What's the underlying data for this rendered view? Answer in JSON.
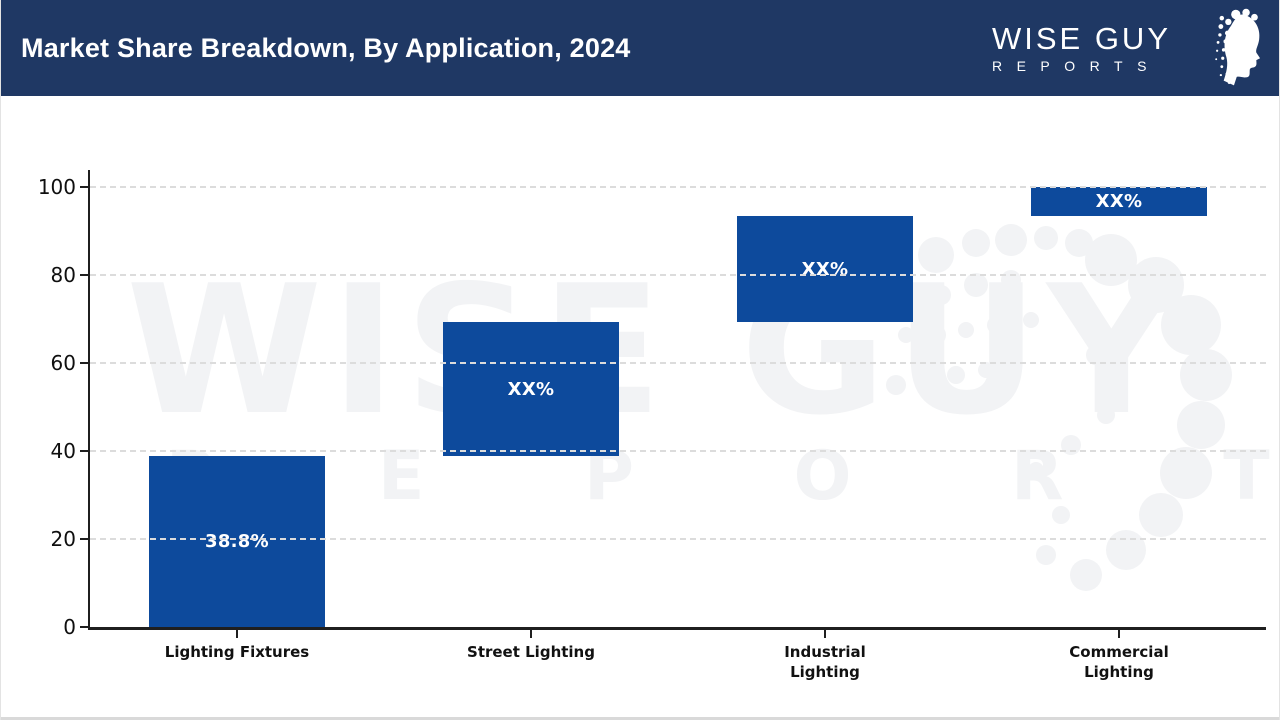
{
  "header": {
    "title": "Market Share Breakdown, By Application, 2024",
    "logo": {
      "line1": "WISE GUY",
      "line2": "REPORTS"
    }
  },
  "watermark": {
    "line1": "WISE GUY",
    "line2": "R E P O R T S"
  },
  "colors": {
    "header_bg": "#1F3864",
    "bar_blue": "#0D4A9C",
    "grid_gray": "#DCDCDC",
    "watermark_gray": "#F2F3F5"
  },
  "chart_data": {
    "type": "bar",
    "subtype": "waterfall",
    "title": "Market Share Breakdown, By Application, 2024",
    "categories": [
      "Lighting Fixtures",
      "Street Lighting",
      "Industrial\nLighting",
      "Commercial\nLighting"
    ],
    "bars": [
      {
        "category": "Lighting Fixtures",
        "start": 0,
        "end": 38.8,
        "label": "38.8%"
      },
      {
        "category": "Street Lighting",
        "start": 38.8,
        "end": 69.2,
        "label": "XX%"
      },
      {
        "category": "Industrial Lighting",
        "start": 69.2,
        "end": 93.4,
        "label": "XX%"
      },
      {
        "category": "Commercial Lighting",
        "start": 93.4,
        "end": 100,
        "label": "XX%"
      }
    ],
    "yticks": [
      0,
      20,
      40,
      60,
      80,
      100
    ],
    "ylim": [
      0,
      103.8
    ],
    "xlabel": "",
    "ylabel": "",
    "grid": "horizontal-dashed",
    "legend": "none",
    "bar_color": "#0D4A9C",
    "label_color": "#ffffff"
  }
}
